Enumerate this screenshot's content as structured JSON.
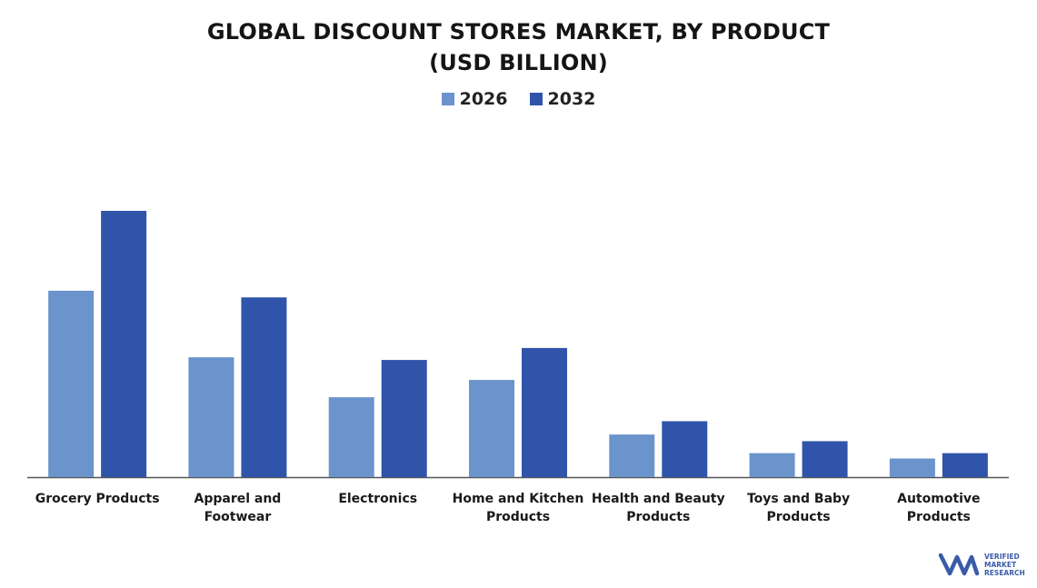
{
  "chart_data": {
    "type": "bar",
    "title_lines": [
      "GLOBAL DISCOUNT STORES MARKET, BY PRODUCT",
      "(USD BILLION)"
    ],
    "xlabel": "",
    "ylabel": "",
    "ylim": [
      0,
      100
    ],
    "grid": false,
    "legend": "top",
    "categories": [
      [
        "Grocery Products"
      ],
      [
        "Apparel and",
        "Footwear"
      ],
      [
        "Electronics"
      ],
      [
        "Home and Kitchen",
        "Products"
      ],
      [
        "Health and Beauty",
        "Products"
      ],
      [
        "Toys and Baby",
        "Products"
      ],
      [
        "Automotive",
        "Products"
      ]
    ],
    "series": [
      {
        "name": "2026",
        "color": "#6b93cc",
        "values": [
          70,
          45,
          30,
          36.5,
          16,
          9,
          7
        ]
      },
      {
        "name": "2032",
        "color": "#2f54aa",
        "values": [
          100,
          67.5,
          44,
          48.5,
          21,
          13.5,
          9
        ]
      }
    ]
  },
  "logo": {
    "brand_color": "#3a5ba8",
    "lines": [
      "VERIFIED",
      "MARKET",
      "RESEARCH"
    ]
  }
}
